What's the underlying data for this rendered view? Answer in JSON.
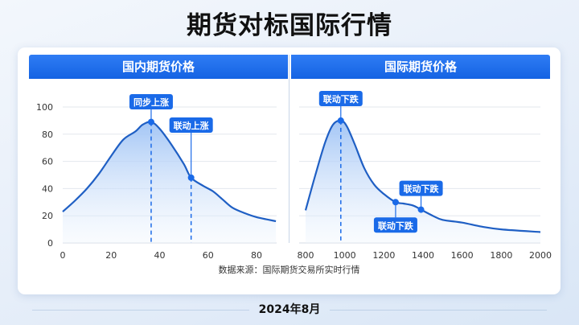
{
  "title": "期货对标国际行情",
  "date_label": "2024年8月",
  "source_label": "数据来源：国际期货交易所实时行情",
  "colors": {
    "accent": "#1a6ae8",
    "line": "#1f5fc4",
    "header": "#1d6ff0",
    "grid": "#e3e7ee"
  },
  "chart_data": [
    {
      "type": "area",
      "title": "国内期货价格",
      "xlabel": "",
      "ylabel": "",
      "xlim": [
        0,
        88
      ],
      "ylim": [
        0,
        100
      ],
      "x_ticks": [
        0,
        20,
        40,
        60,
        80
      ],
      "y_ticks": [
        0,
        20,
        40,
        60,
        80,
        100
      ],
      "grid": true,
      "series": [
        {
          "name": "国内期货价格",
          "x": [
            0,
            5,
            10,
            15,
            20,
            25,
            30,
            33,
            36.5,
            40,
            45,
            50,
            53,
            58,
            62,
            66,
            70,
            75,
            80,
            88
          ],
          "values": [
            23,
            31,
            40,
            51,
            64,
            76,
            82,
            87,
            89,
            84,
            72,
            58,
            48,
            42,
            38,
            32,
            26,
            22,
            19,
            16
          ]
        }
      ],
      "annotations": [
        {
          "label": "同步上涨",
          "x": 36.5,
          "y": 89,
          "line": "dashed"
        },
        {
          "label": "联动上涨",
          "x": 53,
          "y": 48,
          "line": "dashed"
        }
      ]
    },
    {
      "type": "area",
      "title": "国际期货价格",
      "xlabel": "",
      "ylabel": "",
      "xlim": [
        800,
        2000
      ],
      "ylim": [
        0,
        100
      ],
      "x_ticks": [
        800,
        1000,
        1200,
        1400,
        1600,
        1800,
        2000
      ],
      "y_ticks": [
        0,
        20,
        40,
        60,
        80,
        100
      ],
      "grid": true,
      "series": [
        {
          "name": "国际期货价格",
          "x": [
            800,
            850,
            900,
            940,
            980,
            1010,
            1050,
            1100,
            1150,
            1200,
            1260,
            1300,
            1350,
            1390,
            1450,
            1500,
            1600,
            1700,
            1800,
            2000
          ],
          "values": [
            24,
            50,
            74,
            87,
            90,
            86,
            73,
            55,
            43,
            36,
            30,
            29,
            27.5,
            24.5,
            20,
            17,
            15,
            12,
            10,
            8
          ]
        }
      ],
      "annotations": [
        {
          "label": "联动下跌",
          "x": 980,
          "y": 90,
          "line": "dashed"
        },
        {
          "label": "联动下跌",
          "x": 1260,
          "y": 30,
          "line": "solid",
          "position": "below"
        },
        {
          "label": "联动下跌",
          "x": 1390,
          "y": 24.5,
          "line": "solid",
          "position": "above"
        }
      ]
    }
  ]
}
